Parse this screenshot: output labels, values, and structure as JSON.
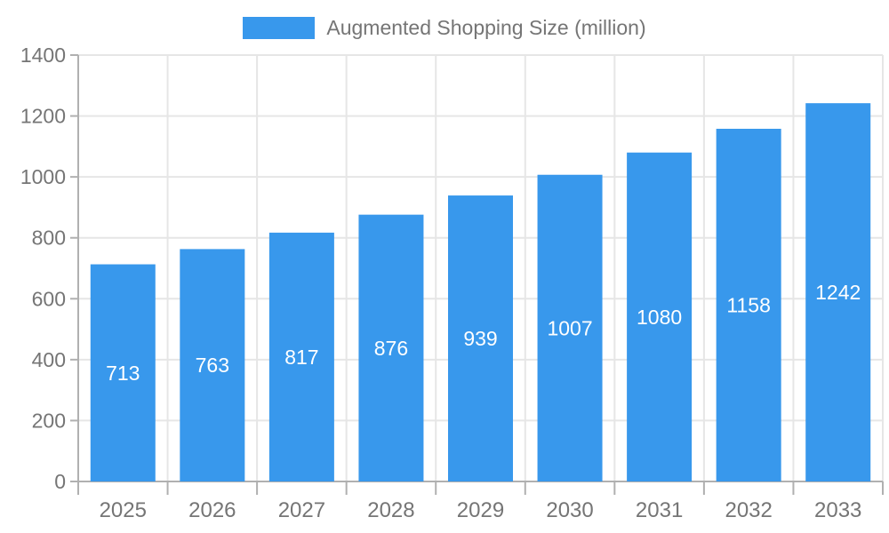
{
  "legend": {
    "label": "Augmented Shopping Size (million)"
  },
  "chart_data": {
    "type": "bar",
    "title": "Augmented Shopping Size (million)",
    "categories": [
      "2025",
      "2026",
      "2027",
      "2028",
      "2029",
      "2030",
      "2031",
      "2032",
      "2033"
    ],
    "series": [
      {
        "name": "Augmented Shopping Size (million)",
        "values": [
          713,
          763,
          817,
          876,
          939,
          1007,
          1080,
          1158,
          1242
        ]
      }
    ],
    "xlabel": "",
    "ylabel": "",
    "ylim": [
      0,
      1400
    ],
    "ytick_step": 200,
    "yticks": [
      0,
      200,
      400,
      600,
      800,
      1000,
      1200,
      1400
    ],
    "grid": true,
    "legend_position": "top",
    "value_labels": "inside-center"
  },
  "colors": {
    "bar": "#3898EC",
    "value_label": "#ffffff",
    "grid_line": "#e6e6e6",
    "axis_line": "#b0b0b0",
    "tick_text": "#757575",
    "background": "#ffffff"
  }
}
